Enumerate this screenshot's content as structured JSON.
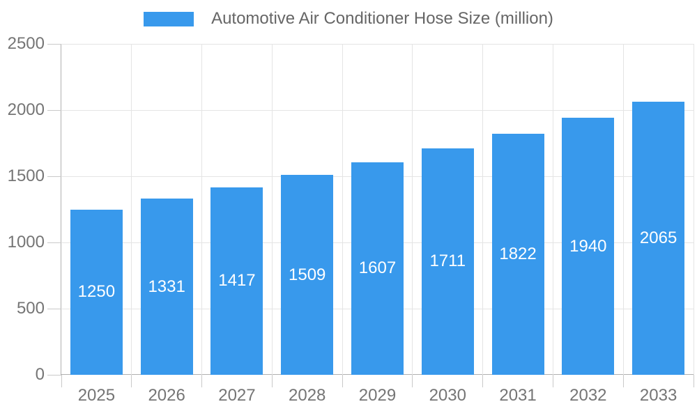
{
  "chart_data": {
    "type": "bar",
    "title": "Automotive Air Conditioner Hose Size (million)",
    "categories": [
      "2025",
      "2026",
      "2027",
      "2028",
      "2029",
      "2030",
      "2031",
      "2032",
      "2033"
    ],
    "values": [
      1250,
      1331,
      1417,
      1509,
      1607,
      1711,
      1822,
      1940,
      2065
    ],
    "xlabel": "",
    "ylabel": "",
    "ylim": [
      0,
      2500
    ],
    "ytick_step": 500,
    "ytick_labels": [
      "0",
      "500",
      "1000",
      "1500",
      "2000",
      "2500"
    ],
    "grid": true,
    "legend_position": "top",
    "colors": {
      "bar": "#3899EC",
      "bar_label": "#FFFFFF",
      "axis_text": "#757575",
      "legend_text": "#666666",
      "grid": "#E4E4E4",
      "axis_line": "#B0B0B0",
      "tick": "#C9C9C9",
      "background": "#FFFFFF"
    }
  }
}
